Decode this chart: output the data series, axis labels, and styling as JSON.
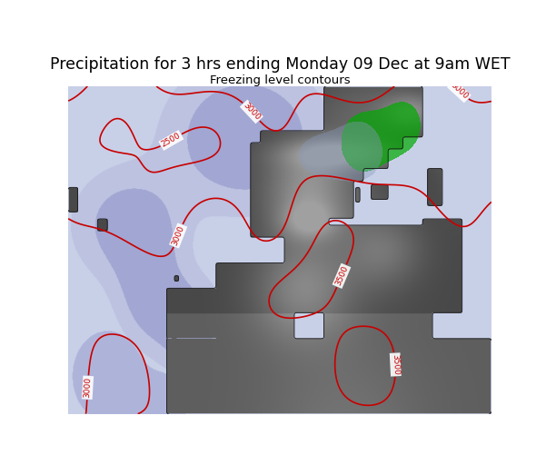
{
  "title": "Precipitation for 3 hrs ending Monday 09 Dec at 9am WET",
  "subtitle": "Freezing level contours",
  "title_fontsize": 12.5,
  "subtitle_fontsize": 9.5,
  "title_color": "#000000",
  "fig_width": 6.01,
  "fig_height": 5.12,
  "dpi": 100,
  "background_color": "#ffffff",
  "header_color": "#ffffff",
  "ocean_color": [
    200,
    208,
    232
  ],
  "land_color": [
    160,
    160,
    160
  ],
  "precip_light_color": [
    180,
    185,
    220
  ],
  "precip_medium_color": [
    150,
    155,
    205
  ],
  "precip_green_color": [
    0,
    160,
    0
  ],
  "contour_color": [
    200,
    0,
    0
  ],
  "contour_label_color": "#000000",
  "contour_linewidth": 1.2,
  "contour_label_fontsize": 6.5,
  "border_color": "#111111",
  "border_linewidth": 0.6,
  "map_lon_min": -28.0,
  "map_lon_max": 15.0,
  "map_lat_min": 22.0,
  "map_lat_max": 48.0
}
